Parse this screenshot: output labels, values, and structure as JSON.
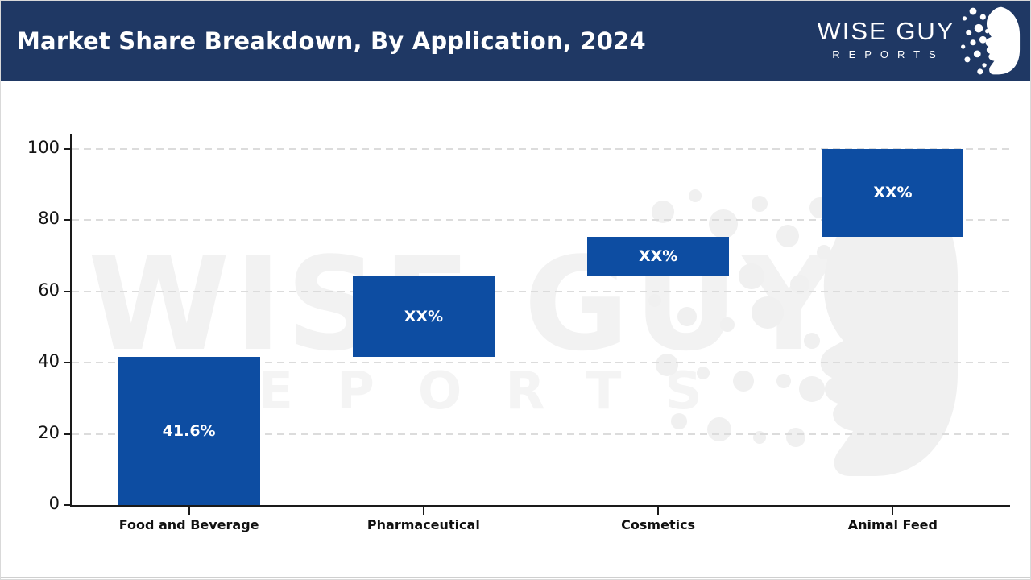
{
  "header": {
    "title": "Market Share Breakdown, By Application, 2024",
    "logo": {
      "line1": "WISE GUY",
      "line2": "REPORTS"
    }
  },
  "watermark": {
    "line1": "WISE GUY",
    "line2": "REPORTS"
  },
  "colors": {
    "header_bg": "#1f3864",
    "bar": "#0d4da2",
    "bar_label": "#ffffff",
    "axis": "#1a1a1a",
    "grid": "#dcdcdc",
    "watermark": "#f2f2f2"
  },
  "chart_data": {
    "type": "bar",
    "subtype": "waterfall",
    "title": "Market Share Breakdown, By Application, 2024",
    "categories": [
      "Food and Beverage",
      "Pharmaceutical",
      "Cosmetics",
      "Animal Feed"
    ],
    "segments": [
      {
        "category": "Food and Beverage",
        "start": 0,
        "end": 41.6,
        "label": "41.6%"
      },
      {
        "category": "Pharmaceutical",
        "start": 41.6,
        "end": 64.2,
        "label": "XX%"
      },
      {
        "category": "Cosmetics",
        "start": 64.2,
        "end": 75.4,
        "label": "XX%"
      },
      {
        "category": "Animal Feed",
        "start": 75.4,
        "end": 100,
        "label": "XX%"
      }
    ],
    "ylim": [
      0,
      100
    ],
    "yticks": [
      0,
      20,
      40,
      60,
      80,
      100
    ],
    "xlabel": "",
    "ylabel": "",
    "grid": "horizontal-dashed",
    "legend": "none"
  }
}
